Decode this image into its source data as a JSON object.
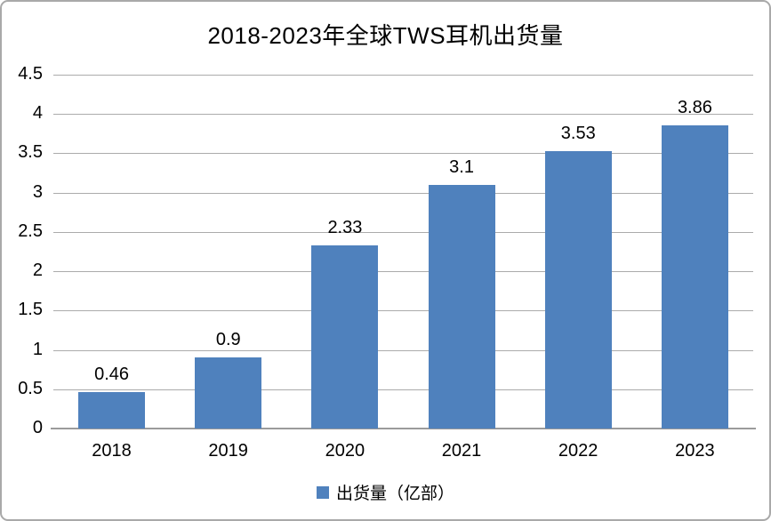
{
  "chart_data": {
    "type": "bar",
    "title": "2018-2023年全球TWS耳机出货量",
    "categories": [
      "2018",
      "2019",
      "2020",
      "2021",
      "2022",
      "2023"
    ],
    "values": [
      0.46,
      0.9,
      2.33,
      3.1,
      3.53,
      3.86
    ],
    "value_labels": [
      "0.46",
      "0.9",
      "2.33",
      "3.1",
      "3.53",
      "3.86"
    ],
    "series_name": "出货量（亿部）",
    "legend": {
      "label": "出货量（亿部）",
      "position": "bottom"
    },
    "xlabel": "",
    "ylabel": "",
    "ylim": [
      0,
      4.5
    ],
    "ytick_step": 0.5,
    "ytick_labels": [
      "0",
      "0.5",
      "1",
      "1.5",
      "2",
      "2.5",
      "3",
      "3.5",
      "4",
      "4.5"
    ],
    "grid": true,
    "bar_color": "#4f81bd",
    "gridline_color": "#ababab",
    "axis_color": "#9b9b9b",
    "text_color": "#000000"
  }
}
